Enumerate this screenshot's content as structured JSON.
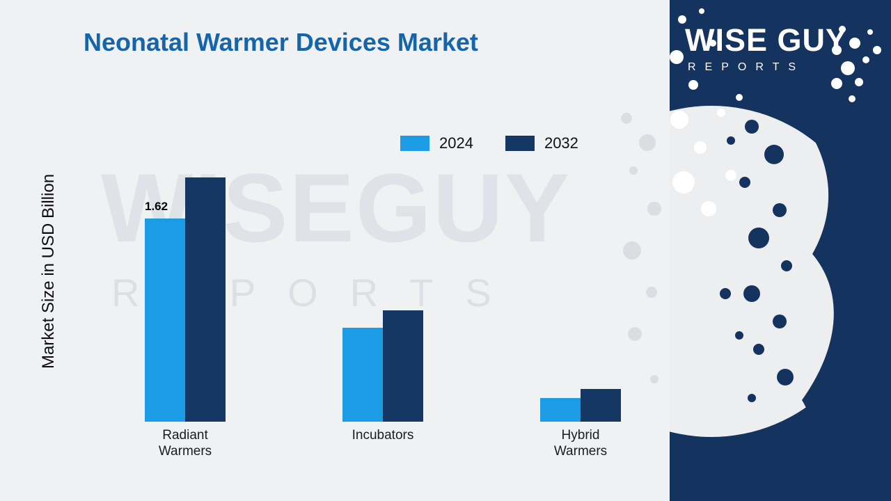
{
  "title": "Neonatal Warmer Devices Market",
  "y_axis_label": "Market Size in USD Billion",
  "legend": [
    {
      "label": "2024",
      "color": "#1b9ce5"
    },
    {
      "label": "2032",
      "color": "#153764"
    }
  ],
  "watermark": {
    "line1": "WISEGUY",
    "line2": "REPORTS"
  },
  "logo": {
    "line1": "WISE GUY",
    "line2": "REPORTS"
  },
  "colors": {
    "title": "#1565ab",
    "background": "#eff1f3",
    "brand_panel": "#14335f",
    "series_2024": "#1b9ce5",
    "series_2032": "#153764"
  },
  "chart_data": {
    "type": "bar",
    "title": "Neonatal Warmer Devices Market",
    "categories": [
      "Radiant Warmers",
      "Incubators",
      "Hybrid Warmers"
    ],
    "series": [
      {
        "name": "2024",
        "color": "#1b9ce5",
        "values": [
          1.62,
          0.75,
          0.19
        ],
        "labels": [
          "1.62",
          "",
          ""
        ]
      },
      {
        "name": "2032",
        "color": "#153764",
        "values": [
          1.95,
          0.89,
          0.26
        ],
        "labels": [
          "",
          "",
          ""
        ]
      }
    ],
    "xlabel": "",
    "ylabel": "Market Size in USD Billion",
    "ylim": [
      0,
      2.1
    ],
    "grid": false,
    "legend_position": "top-center"
  }
}
